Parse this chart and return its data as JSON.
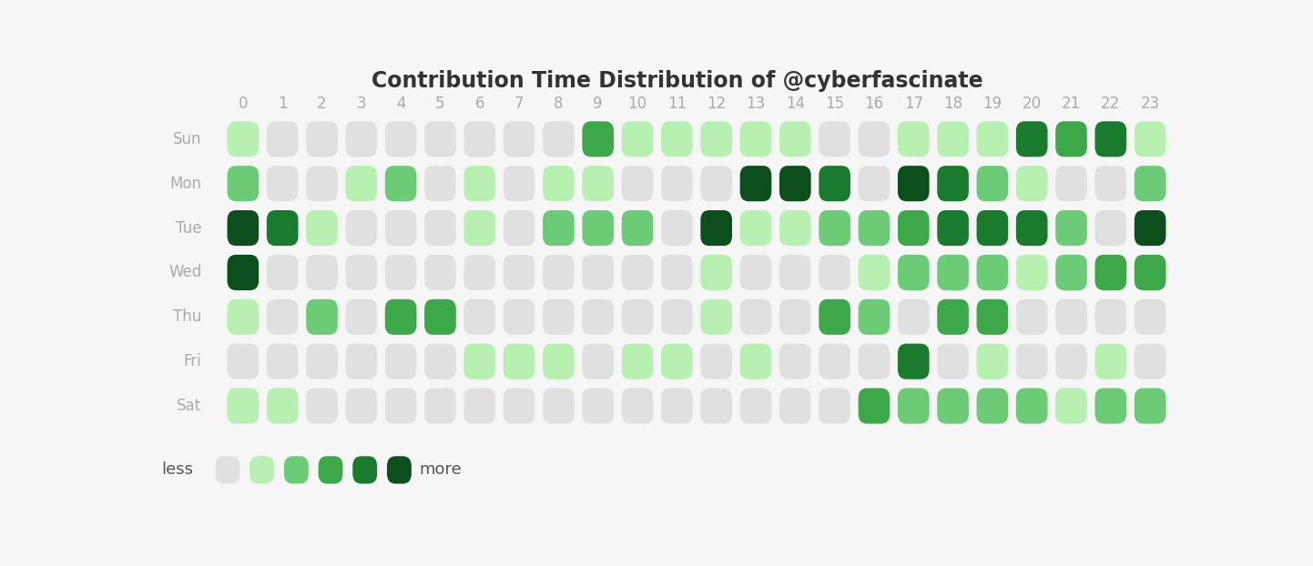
{
  "title": "Contribution Time Distribution of @cyberfascinate",
  "days": [
    "Sun",
    "Mon",
    "Tue",
    "Wed",
    "Thu",
    "Fri",
    "Sat"
  ],
  "hours": [
    0,
    1,
    2,
    3,
    4,
    5,
    6,
    7,
    8,
    9,
    10,
    11,
    12,
    13,
    14,
    15,
    16,
    17,
    18,
    19,
    20,
    21,
    22,
    23
  ],
  "grid": [
    [
      1,
      0,
      0,
      0,
      0,
      0,
      0,
      0,
      0,
      3,
      1,
      1,
      1,
      1,
      1,
      0,
      0,
      1,
      1,
      1,
      4,
      3,
      4,
      1
    ],
    [
      2,
      0,
      0,
      1,
      2,
      0,
      1,
      0,
      1,
      1,
      0,
      0,
      0,
      5,
      5,
      4,
      0,
      5,
      4,
      2,
      1,
      0,
      0,
      2
    ],
    [
      5,
      4,
      1,
      0,
      0,
      0,
      1,
      0,
      2,
      2,
      2,
      0,
      5,
      1,
      1,
      2,
      2,
      3,
      4,
      4,
      4,
      2,
      0,
      5
    ],
    [
      5,
      0,
      0,
      0,
      0,
      0,
      0,
      0,
      0,
      0,
      0,
      0,
      1,
      0,
      0,
      0,
      1,
      2,
      2,
      2,
      1,
      2,
      3,
      3
    ],
    [
      1,
      0,
      2,
      0,
      3,
      3,
      0,
      0,
      0,
      0,
      0,
      0,
      1,
      0,
      0,
      3,
      2,
      0,
      3,
      3,
      0,
      0,
      0,
      0
    ],
    [
      0,
      0,
      0,
      0,
      0,
      0,
      1,
      1,
      1,
      0,
      1,
      1,
      0,
      1,
      0,
      0,
      0,
      4,
      0,
      1,
      0,
      0,
      1,
      0
    ],
    [
      1,
      1,
      0,
      0,
      0,
      0,
      0,
      0,
      0,
      0,
      0,
      0,
      0,
      0,
      0,
      0,
      3,
      2,
      2,
      2,
      2,
      1,
      2,
      2
    ]
  ],
  "color_levels": [
    "#e0e0e0",
    "#b7f0b1",
    "#6bcb77",
    "#3da84a",
    "#1a7a2e",
    "#0d4f1c"
  ],
  "background_color": "#f6f6f6",
  "title_fontsize": 17,
  "label_fontsize": 12,
  "legend_fontsize": 13
}
